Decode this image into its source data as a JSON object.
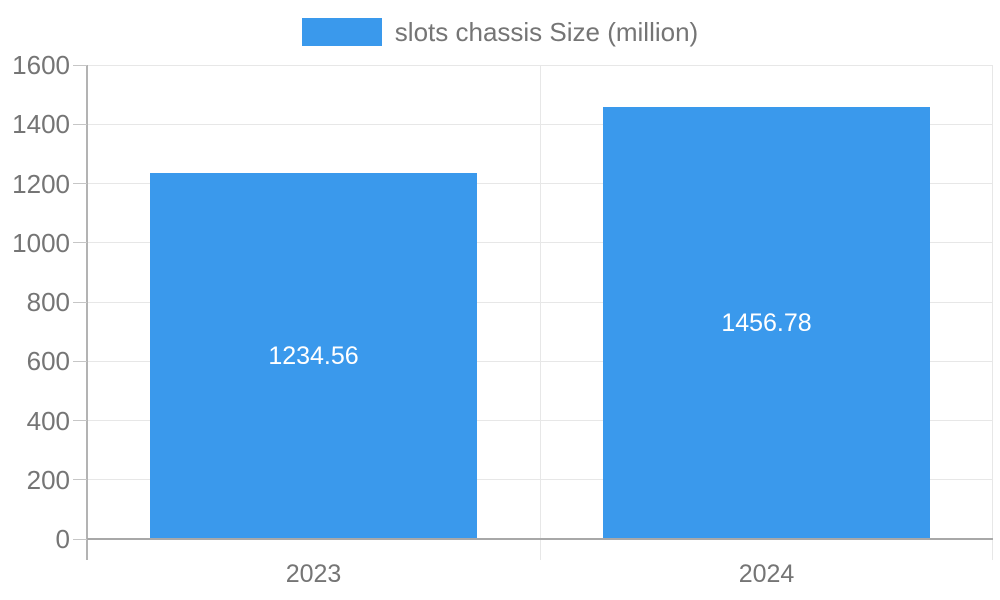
{
  "chart_data": {
    "type": "bar",
    "title": "",
    "legend": {
      "label": "slots chassis Size (million)",
      "position": "top"
    },
    "categories": [
      "2023",
      "2024"
    ],
    "series": [
      {
        "name": "slots chassis Size (million)",
        "values": [
          1234.56,
          1456.78
        ],
        "data_labels": [
          "1234.56",
          "1456.78"
        ],
        "color": "#3a99ec"
      }
    ],
    "xlabel": "",
    "ylabel": "",
    "ylim": [
      0,
      1600
    ],
    "ytick_step": 200,
    "ytick_labels": [
      "0",
      "200",
      "400",
      "600",
      "800",
      "1000",
      "1200",
      "1400",
      "1600"
    ],
    "grid": true,
    "colors": {
      "bar": "#3a99ec",
      "grid_line": "#e7e7e7",
      "axis_line": "#b3b3b3",
      "baseline": "#a8a8a8",
      "tick_mark": "#c6c6c6",
      "tick_text": "#757575",
      "bar_label_text": "#ffffff",
      "background": "#ffffff"
    }
  }
}
